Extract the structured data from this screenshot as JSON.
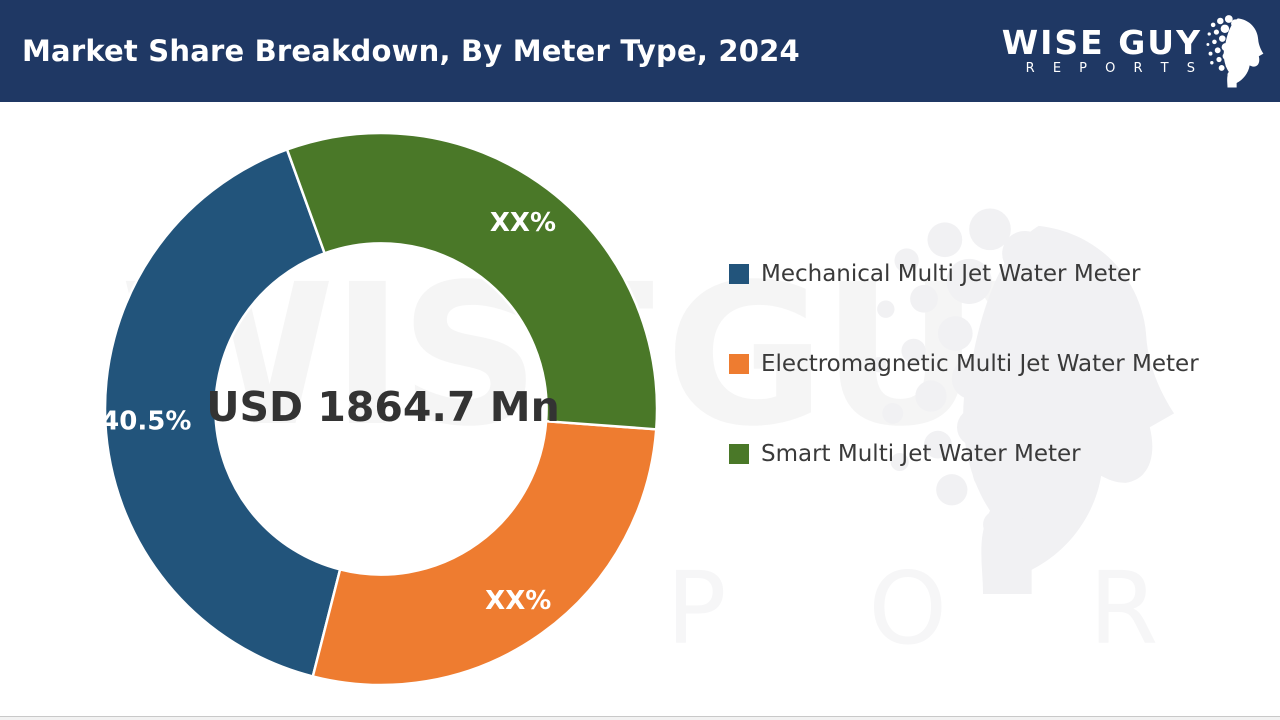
{
  "header": {
    "title": "Market Share Breakdown, By Meter Type, 2024",
    "logo": {
      "line1": "WISE GUY",
      "line2": "R E P O R T S"
    }
  },
  "watermark": {
    "line1": "WISEGUY",
    "line2": "R E P O R T S"
  },
  "chart_data": {
    "type": "pie",
    "subtype": "donut",
    "title": "Market Share Breakdown, By Meter Type, 2024",
    "center_label": "USD 1864.7 Mn",
    "units": "percent share",
    "start_angle_deg": 109.9,
    "direction": "ccw",
    "inner_radius_ratio": 0.6,
    "legend_position": "right",
    "slices": [
      {
        "label": "Mechanical Multi Jet Water Meter",
        "value": 40.5,
        "display_label": "40.5%",
        "color": "#22547b"
      },
      {
        "label": "Electromagnetic Multi Jet Water Meter",
        "value": 27.8,
        "display_label": "XX%",
        "color": "#ee7c30"
      },
      {
        "label": "Smart Multi Jet Water Meter",
        "value": 31.7,
        "display_label": "XX%",
        "color": "#4a7828"
      }
    ]
  },
  "colors": {
    "header_bg": "#1f3864",
    "slice_label_text": "#ffffff",
    "center_text": "#333333",
    "legend_text": "#3a3a3a"
  }
}
